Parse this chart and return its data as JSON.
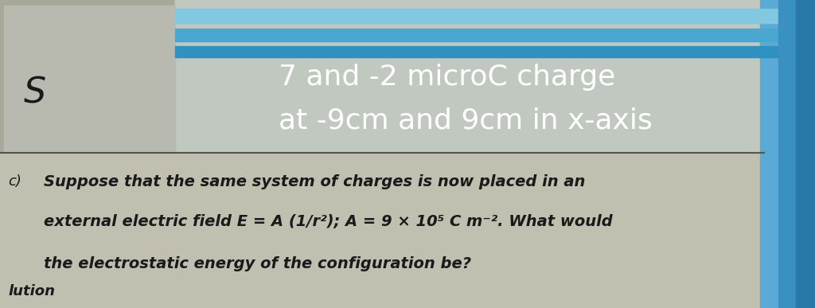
{
  "figsize": [
    10.24,
    3.87
  ],
  "dpi": 100,
  "title_line1": "7 and -2 microC charge",
  "title_line2": "at -9cm and 9cm in x-axis",
  "title_color": "#ffffff",
  "title_fontsize": 26,
  "body_text_line1": "uppose that the same system of charges is now placed in an",
  "body_text_line2": "external electric field E = A (1/r²); A = 9 × 10⁵ C m⁻². What would",
  "body_text_line3": "the electrostatic energy of the configuration be?",
  "body_text_color": "#1a1a1a",
  "body_fontsize": 14,
  "left_label": "S",
  "partial_label": "c)",
  "bottom_text": "lution",
  "bg_main": "#9a9a8a",
  "left_page_color": "#a8a89a",
  "top_right_bg": "#c8cfc8",
  "bottom_right_bg": "#c0bfb0",
  "stripe1_color": "#82c8e0",
  "stripe2_color": "#4aa8d0",
  "stripe3_color": "#3090c0",
  "left_box_color": "#b8bab0",
  "divider_line_color": "#555550"
}
